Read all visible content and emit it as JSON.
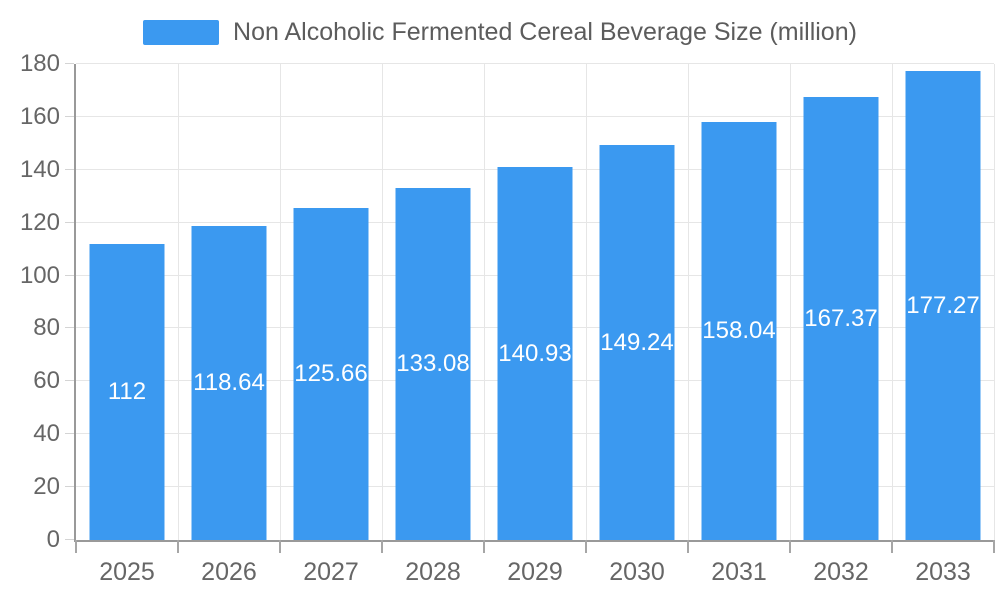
{
  "chart_data": {
    "type": "bar",
    "title": "",
    "legend": "Non Alcoholic Fermented Cereal Beverage Size (million)",
    "legend_position": "top",
    "categories": [
      "2025",
      "2026",
      "2027",
      "2028",
      "2029",
      "2030",
      "2031",
      "2032",
      "2033"
    ],
    "values": [
      112,
      118.64,
      125.66,
      133.08,
      140.93,
      149.24,
      158.04,
      167.37,
      177.27
    ],
    "value_labels": [
      "112",
      "118.64",
      "125.66",
      "133.08",
      "140.93",
      "149.24",
      "158.04",
      "167.37",
      "177.27"
    ],
    "xlabel": "",
    "ylabel": "",
    "ylim": [
      0,
      180
    ],
    "y_ticks": [
      "0",
      "20",
      "40",
      "60",
      "80",
      "100",
      "120",
      "140",
      "160",
      "180"
    ],
    "grid": true,
    "colors": {
      "bar": "#3b99f0",
      "value_label": "#ffffff",
      "axis": "#999999",
      "grid": "#e6e6e6",
      "tick_text": "#666666",
      "legend_text": "#5c5c5c"
    }
  }
}
